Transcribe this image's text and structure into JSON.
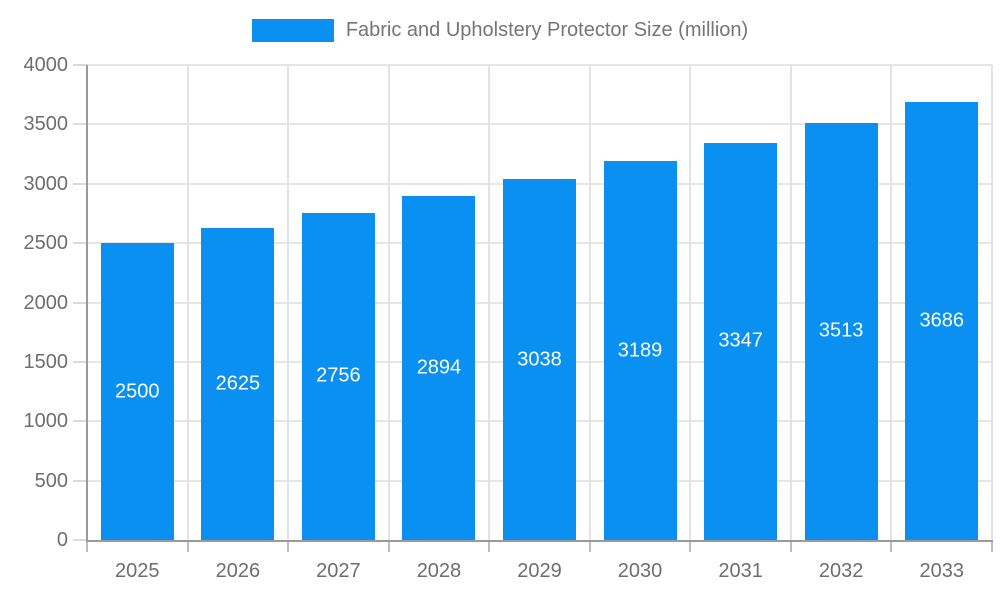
{
  "legend": {
    "label": "Fabric and Upholstery Protector Size (million)"
  },
  "colors": {
    "bar": "#0990f0",
    "grid_horizontal": "#e6e6e6",
    "grid_vertical": "#e3e3e3",
    "axis_line": "#9a9a9a",
    "y_tick": "#d9d9d9",
    "x_tick": "#bdbdbd",
    "axis_label_text": "#6e6e6e",
    "legend_text": "#757575",
    "value_label_text": "#ffffff",
    "background": "#ffffff"
  },
  "chart_data": {
    "type": "bar",
    "title": "Fabric and Upholstery Protector Size (million)",
    "categories": [
      "2025",
      "2026",
      "2027",
      "2028",
      "2029",
      "2030",
      "2031",
      "2032",
      "2033"
    ],
    "values": [
      2500,
      2625,
      2756,
      2894,
      3038,
      3189,
      3347,
      3513,
      3686
    ],
    "series_name": "Fabric and Upholstery Protector Size (million)",
    "xlabel": "",
    "ylabel": "",
    "ylim": [
      0,
      4000
    ],
    "yticks": [
      0,
      500,
      1000,
      1500,
      2000,
      2500,
      3000,
      3500,
      4000
    ],
    "grid": true,
    "legend_position": "top-center",
    "value_labels_position": "inside-middle"
  }
}
